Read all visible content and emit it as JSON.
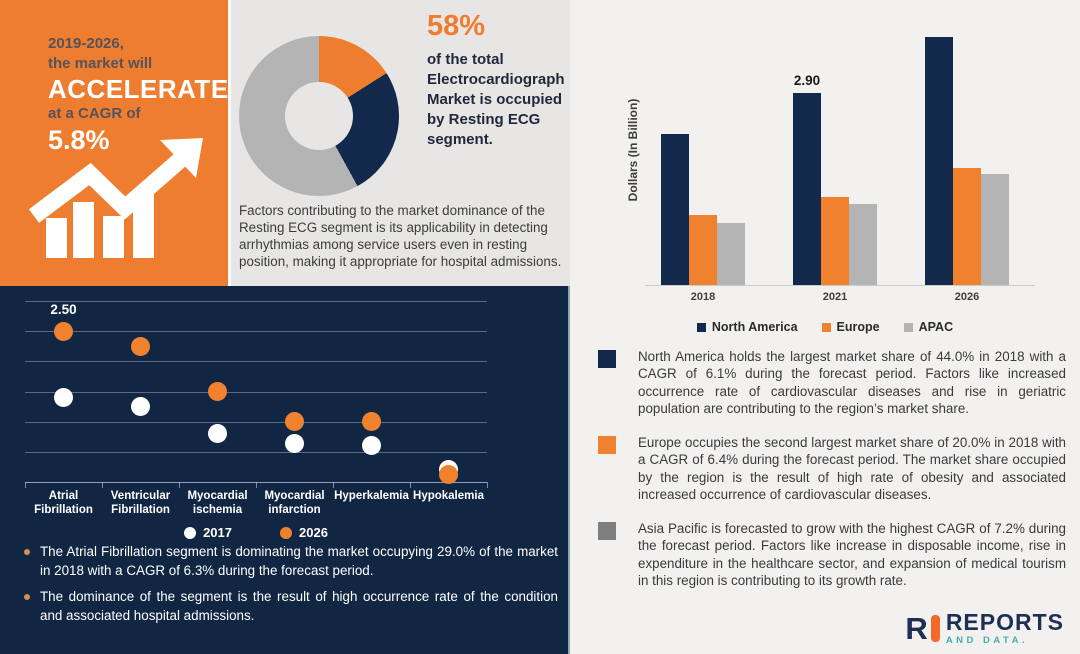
{
  "colors": {
    "orange": "#EE7D2F",
    "navy": "#12294B",
    "panel_navy": "#112642",
    "gray": "#B5B4B4",
    "bullet_gray": "#7F7F7F",
    "teal": "#3FB0AC",
    "white": "#FFFFFF"
  },
  "promo": {
    "period": "2019-2026,",
    "line2": "the market will",
    "headline": "ACCELERATE",
    "line4": "at a CAGR of",
    "cagr": "5.8%"
  },
  "donut_section": {
    "stat": "58%",
    "callout": "of the total Electrocardiograph Market is occupied by Resting ECG segment.",
    "note": "Factors contributing to the market dominance of the Resting ECG segment is its applicability in detecting arrhythmias among service users even in resting position, making it appropriate for hospital admissions."
  },
  "chart_data": [
    {
      "type": "pie",
      "variant": "donut",
      "slices": [
        {
          "label": "",
          "value": 16,
          "color": "#EE7D2F"
        },
        {
          "label": "",
          "value": 26,
          "color": "#12294B"
        },
        {
          "label": "Resting ECG",
          "value": 58,
          "color": "#B5B4B4"
        }
      ]
    },
    {
      "type": "bar",
      "title": "",
      "ylabel": "Dollars (In Billion)",
      "categories": [
        "2018",
        "2021",
        "2026"
      ],
      "ylim": [
        0,
        4
      ],
      "grid": false,
      "legend_position": "bottom",
      "series": [
        {
          "name": "North America",
          "color": "#12294B",
          "values": [
            2.28,
            2.9,
            3.74
          ]
        },
        {
          "name": "Europe",
          "color": "#F0812F",
          "values": [
            1.05,
            1.33,
            1.77
          ]
        },
        {
          "name": "APAC",
          "color": "#B5B4B4",
          "values": [
            0.94,
            1.22,
            1.67
          ]
        }
      ],
      "annotations": [
        {
          "series": "North America",
          "category": "2021",
          "text": "2.90"
        }
      ]
    },
    {
      "type": "scatter",
      "variant": "dot-plot",
      "ylim": [
        0,
        3
      ],
      "grid_step": 0.5,
      "legend_position": "bottom",
      "categories": [
        "Atrial Fibrillation",
        "Ventricular Fibrillation",
        "Myocardial ischemia",
        "Myocardial infarction",
        "Hyperkalemia",
        "Hypokalemia"
      ],
      "series": [
        {
          "name": "2017",
          "color": "#FFFFFF",
          "values": [
            1.4,
            1.25,
            0.8,
            0.63,
            0.6,
            0.2
          ]
        },
        {
          "name": "2026",
          "color": "#F0812F",
          "values": [
            2.5,
            2.25,
            1.5,
            1.0,
            1.0,
            0.12
          ]
        }
      ],
      "annotations": [
        {
          "series": "2026",
          "category": "Atrial Fibrillation",
          "text": "2.50"
        }
      ]
    }
  ],
  "left_panel": {
    "bullets": [
      "The Atrial Fibrillation segment is dominating the market occupying 29.0% of the market in 2018 with a CAGR of 6.3% during the forecast period.",
      "The dominance of the segment is the result of high occurrence rate of the condition and associated hospital admissions."
    ]
  },
  "region_bullets": [
    {
      "color": "#12294B",
      "text": "North America holds the largest market share of 44.0% in 2018 with a CAGR of 6.1% during the forecast period. Factors like increased occurrence rate of cardiovascular diseases and rise in geriatric population are contributing to the region’s market share."
    },
    {
      "color": "#F0812F",
      "text": "Europe occupies the second largest market share of 20.0% in 2018 with a CAGR of 6.4% during the forecast period. The market share occupied by the region is the result of high rate of obesity and associated increased occurrence of cardiovascular diseases."
    },
    {
      "color": "#7F7F7F",
      "text": "Asia Pacific is forecasted to grow with the highest CAGR of 7.2% during the forecast period. Factors like increase in disposable income, rise in expenditure in the healthcare sector, and expansion of medical tourism in this region is contributing to its growth rate."
    }
  ],
  "logo": {
    "icon_letter": "R",
    "title": "REPORTS",
    "subtitle": "AND DATA."
  }
}
